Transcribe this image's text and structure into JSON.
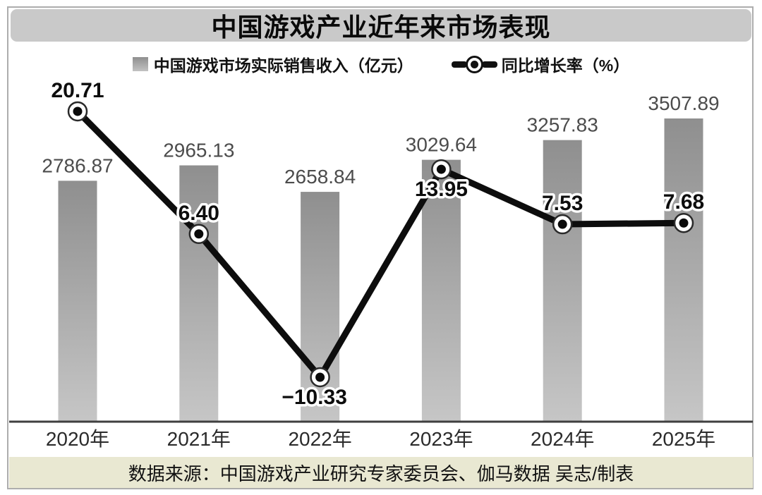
{
  "window": {
    "title": "中国游戏产业近年来市场表现"
  },
  "legend": {
    "bar_label": "中国游戏市场实际销售收入（亿元）",
    "line_label": "同比增长率（%）"
  },
  "footer": {
    "source_note": "数据来源：中国游戏产业研究专家委员会、伽马数据 吴志/制表"
  },
  "colors": {
    "header_bg": "#c9c9c9",
    "footer_bg": "#e9e8d2",
    "bar_top": "#8f8f8f",
    "bar_bottom": "#c6c6c6",
    "line": "#0d0d0d",
    "axis": "#3f3f3f",
    "marker_ring": "#2a2a2a",
    "marker_fill": "#ffffff",
    "marker_dot": "#0a0a0a",
    "bar_value_label": "#4c4c4c",
    "year_label": "#2b2b2b",
    "frame_border": "#adadad"
  },
  "chart_data": {
    "type": "bar",
    "subtype": "bar-line combo with dual implicit axes",
    "title": "中国游戏产业近年来市场表现",
    "categories": [
      "2020年",
      "2021年",
      "2022年",
      "2023年",
      "2024年",
      "2025年"
    ],
    "series": [
      {
        "name": "中国游戏市场实际销售收入（亿元）",
        "type": "bar",
        "values": [
          2786.87,
          2965.13,
          2658.84,
          3029.64,
          3257.83,
          3507.89
        ]
      },
      {
        "name": "同比增长率（%）",
        "type": "line",
        "values": [
          20.71,
          6.4,
          -10.33,
          13.95,
          7.53,
          7.68
        ],
        "point_label_side": [
          "above",
          "above",
          "below",
          "below",
          "above",
          "above"
        ]
      }
    ],
    "bar_axis_range": [
      0,
      3600
    ],
    "line_axis_range": [
      -15.5,
      24
    ],
    "grid": false,
    "legend_position": "top",
    "data_labels": true,
    "source_note": "数据来源：中国游戏产业研究专家委员会、伽马数据 吴志/制表"
  }
}
